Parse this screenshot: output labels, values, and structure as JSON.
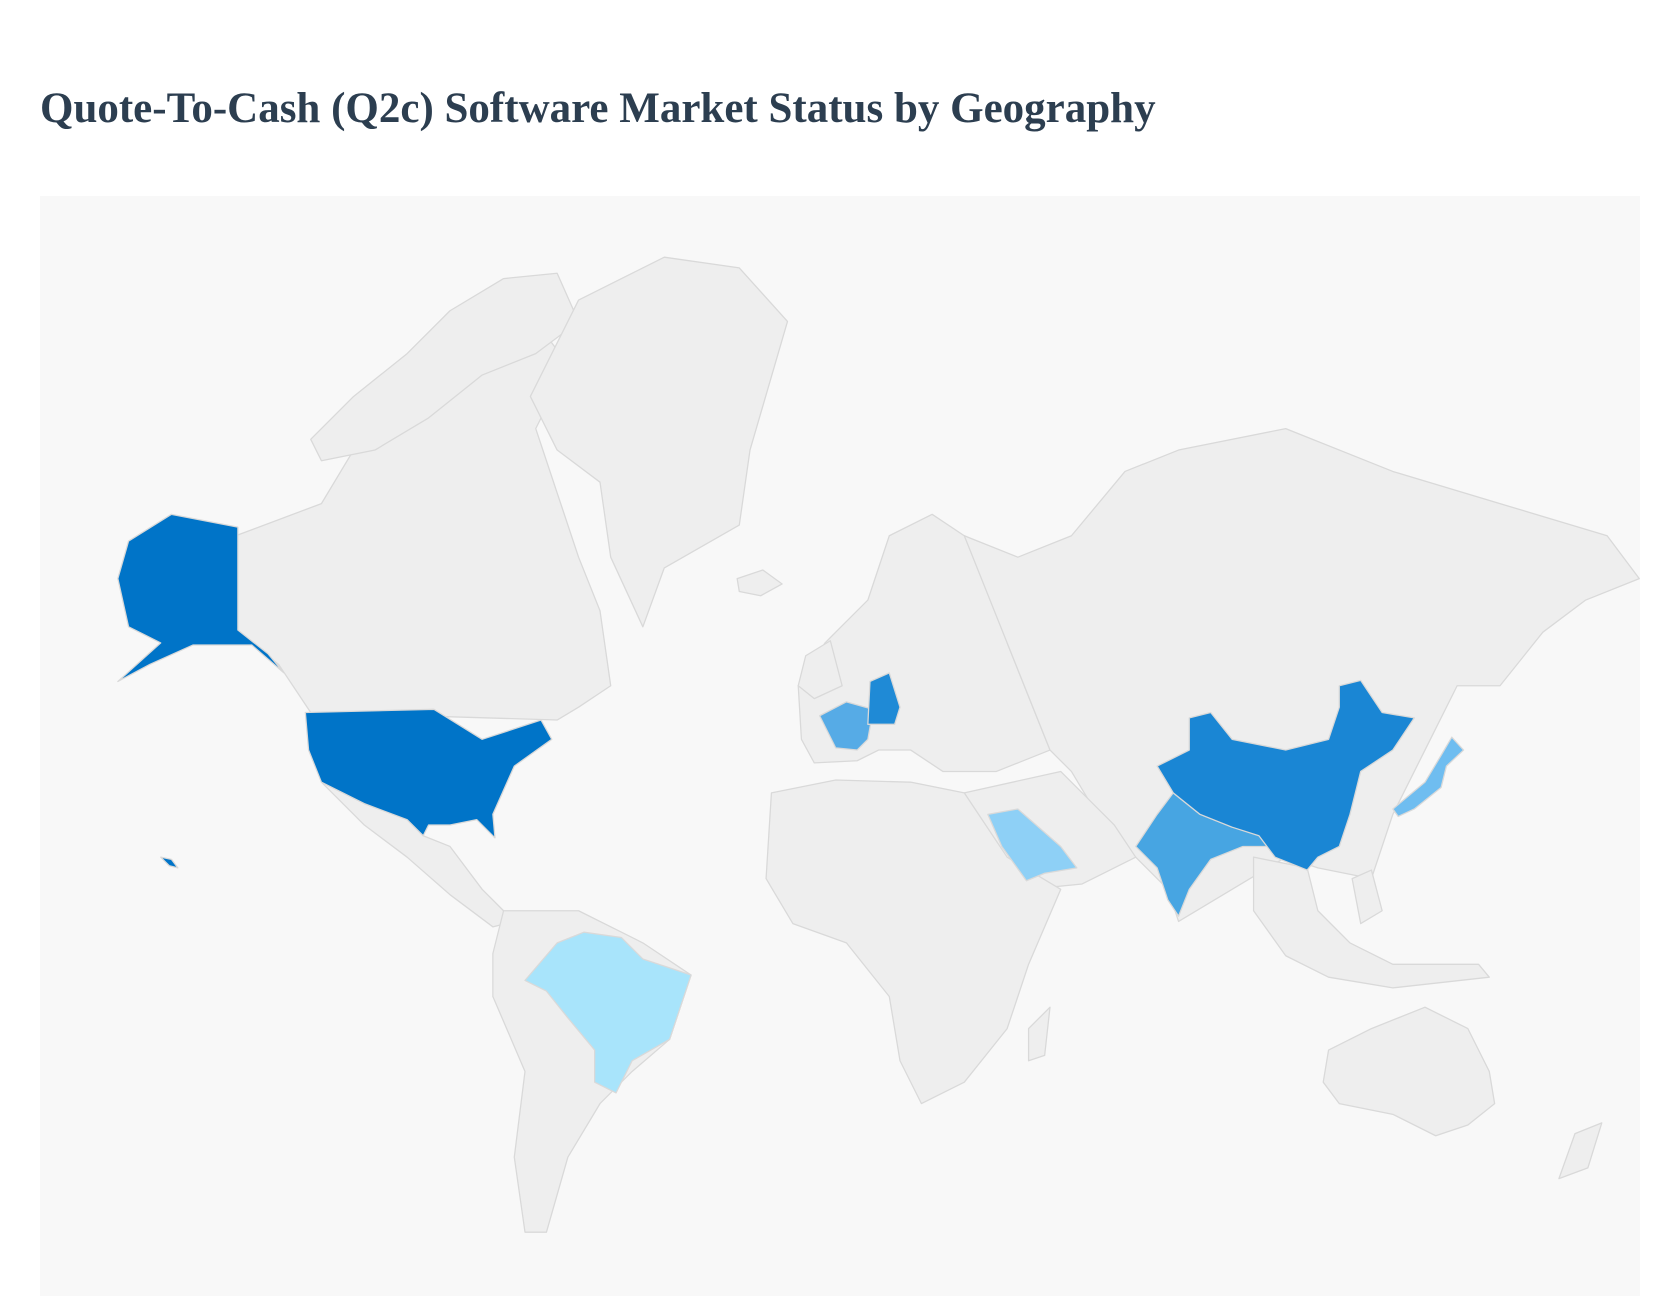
{
  "title": "Quote-To-Cash (Q2c) Software Market Status by Geography",
  "map": {
    "background": "#f8f8f8",
    "land_color": "#eeeeee",
    "border_color": "#d9d9d9",
    "highlighted": {
      "united_states": "#0074c8",
      "china": "#1a86d4",
      "germany": "#1f8ad6",
      "india": "#47a5e2",
      "france": "#56abe6",
      "japan": "#6fbdf0",
      "saudi_arabia": "#8ed0f6",
      "brazil": "#a8e4fb"
    }
  }
}
